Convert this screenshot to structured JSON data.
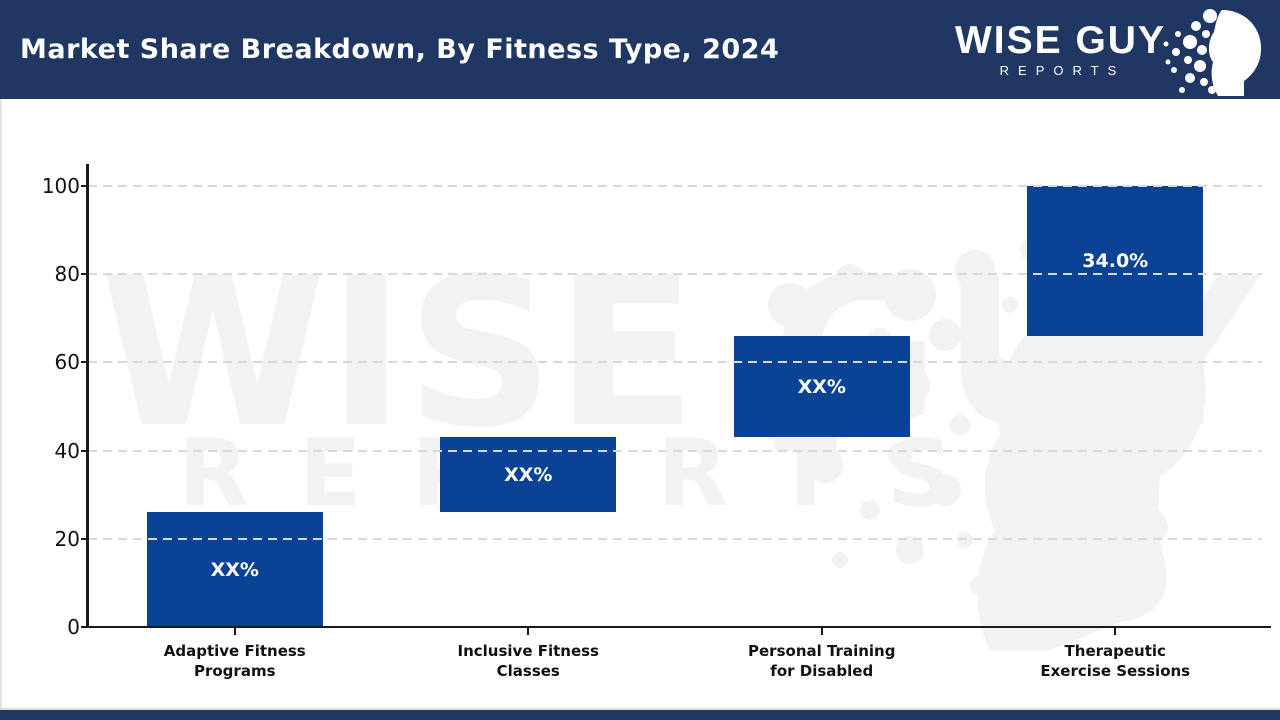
{
  "header": {
    "title": "Market Share Breakdown, By Fitness Type, 2024",
    "logo": {
      "line1": "WISE GUY",
      "line2": "REPORTS"
    }
  },
  "watermark": {
    "line1": "WISE GUY",
    "line2": "REPORTS"
  },
  "colors": {
    "header_navy": "#203763",
    "bar_blue": "#0a4396",
    "gridline_gray": "#d8d8d8",
    "watermark_gray": "#f2f2f4",
    "text_black": "#111111",
    "label_white": "#ffffff"
  },
  "chart_data": {
    "type": "bar",
    "subtype": "waterfall",
    "title": "Market Share Breakdown, By Fitness Type, 2024",
    "categories": [
      "Adaptive Fitness\nPrograms",
      "Inclusive Fitness\nClasses",
      "Personal Training\nfor Disabled",
      "Therapeutic\nExercise Sessions"
    ],
    "segments": [
      {
        "start": 0,
        "end": 26,
        "label": "XX%"
      },
      {
        "start": 26,
        "end": 43,
        "label": "XX%"
      },
      {
        "start": 43,
        "end": 66,
        "label": "XX%"
      },
      {
        "start": 66,
        "end": 100,
        "label": "34.0%"
      }
    ],
    "y_ticks": [
      0,
      20,
      40,
      60,
      80,
      100
    ],
    "ylim": [
      0,
      105
    ],
    "xlabel": "",
    "ylabel": "",
    "grid": "horizontal-dashed",
    "legend": "none"
  }
}
